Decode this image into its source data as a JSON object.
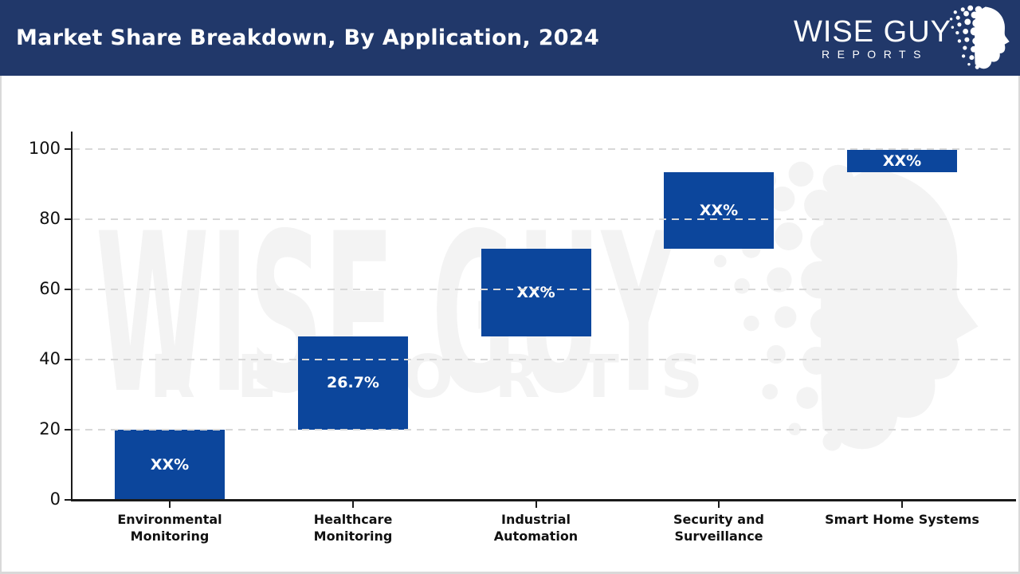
{
  "header": {
    "title": "Market Share Breakdown, By Application, 2024",
    "logo": {
      "line1": "WISE GUY",
      "line2": "REPORTS"
    }
  },
  "watermark": {
    "line1": "WISE GUY",
    "line2": "REPORTS"
  },
  "colors": {
    "header_bg": "#21386a",
    "header_text": "#ffffff",
    "bar": "#0c469c",
    "bar_label_text": "#ffffff",
    "grid": "#d8d8d8",
    "axis": "#1a1a1a",
    "tick_text": "#111111",
    "watermark": "#f3f3f3",
    "panel_border": "#d9d9d9"
  },
  "chart_data": {
    "type": "bar",
    "subtype": "waterfall",
    "title": "Market Share Breakdown, By Application, 2024",
    "xlabel": "",
    "ylabel": "",
    "ylim": [
      0,
      105
    ],
    "yticks": [
      0,
      20,
      40,
      60,
      80,
      100
    ],
    "grid": "horizontal-dashed",
    "legend": "none",
    "categories": [
      "Environmental\nMonitoring",
      "Healthcare\nMonitoring",
      "Industrial\nAutomation",
      "Security and\nSurveillance",
      "Smart Home Systems"
    ],
    "bars": [
      {
        "category": "Environmental\nMonitoring",
        "start": 0,
        "end": 20,
        "label": "XX%"
      },
      {
        "category": "Healthcare\nMonitoring",
        "start": 20,
        "end": 46.7,
        "label": "26.7%"
      },
      {
        "category": "Industrial\nAutomation",
        "start": 46.7,
        "end": 71.7,
        "label": "XX%"
      },
      {
        "category": "Security and\nSurveillance",
        "start": 71.7,
        "end": 93.4,
        "label": "XX%"
      },
      {
        "category": "Smart Home Systems",
        "start": 93.4,
        "end": 99.8,
        "label": "XX%"
      }
    ]
  }
}
